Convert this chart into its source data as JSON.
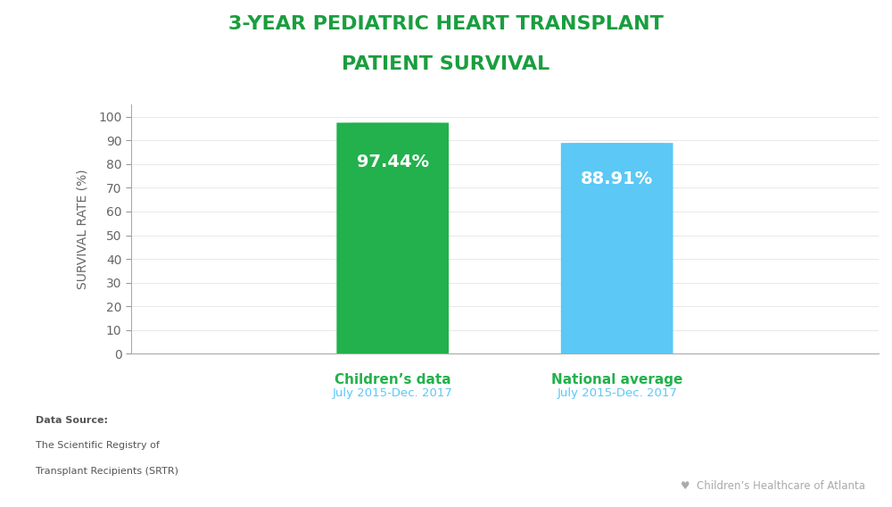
{
  "title_line1": "3-YEAR PEDIATRIC HEART TRANSPLANT",
  "title_line2": "PATIENT SURVIVAL",
  "title_color": "#1a9e3f",
  "bar_categories": [
    "Children’s data",
    "National average"
  ],
  "bar_subtitles": [
    "July 2015-Dec. 2017",
    "July 2015-Dec. 2017"
  ],
  "bar_values": [
    97.44,
    88.91
  ],
  "bar_labels": [
    "97.44%",
    "88.91%"
  ],
  "bar_colors": [
    "#22b14c",
    "#5bc8f5"
  ],
  "bar_label_color": "#ffffff",
  "ylabel": "SURVIVAL RATE (%)",
  "ylim": [
    0,
    105
  ],
  "yticks": [
    0,
    10,
    20,
    30,
    40,
    50,
    60,
    70,
    80,
    90,
    100
  ],
  "background_color": "#ffffff",
  "datasource_line1": "Data Source:",
  "datasource_line2": "The Scientific Registry of",
  "datasource_line3": "Transplant Recipients (SRTR)",
  "watermark": "♥  Children’s Healthcare of Atlanta",
  "category_color": "#22b14c",
  "subtitle_color": "#5bc8f5",
  "bar_width": 0.12,
  "x_positions": [
    0.38,
    0.62
  ]
}
